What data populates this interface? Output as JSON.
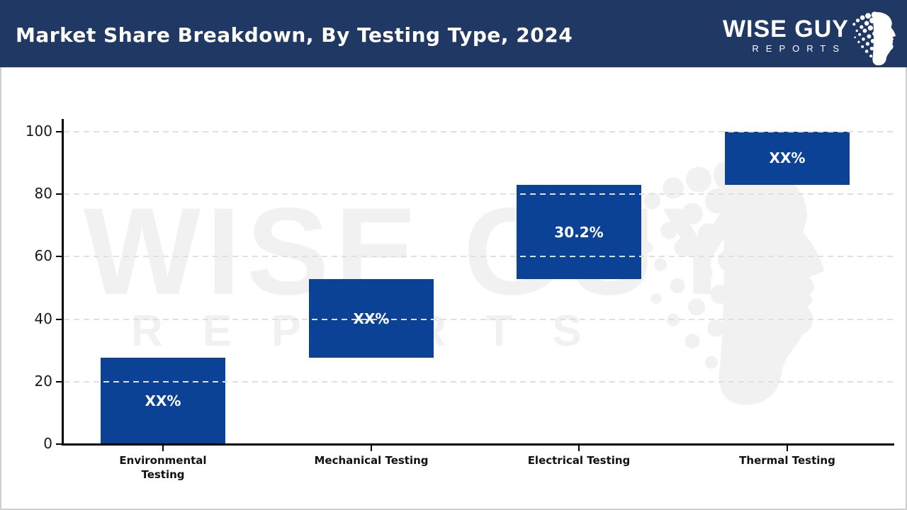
{
  "header": {
    "title": "Market Share Breakdown, By Testing Type, 2024",
    "bg_color": "#1f3864",
    "logo": {
      "line1": "WISE GUY",
      "line2": "REPORTS"
    }
  },
  "watermark": {
    "line1": "WISE GUY",
    "line2": "REPORTS",
    "color": "#f1f1f1"
  },
  "chart_data": {
    "type": "bar",
    "variant": "waterfall",
    "title": "Market Share Breakdown, By Testing Type, 2024",
    "categories": [
      "Environmental Testing",
      "Mechanical Testing",
      "Electrical Testing",
      "Thermal Testing"
    ],
    "category_lines": [
      [
        "Environmental",
        "Testing"
      ],
      [
        "Mechanical Testing"
      ],
      [
        "Electrical Testing"
      ],
      [
        "Thermal Testing"
      ]
    ],
    "segments": [
      {
        "category": "Environmental Testing",
        "start": 0,
        "end": 27.6,
        "label": "XX%"
      },
      {
        "category": "Mechanical Testing",
        "start": 27.6,
        "end": 52.8,
        "label": "XX%"
      },
      {
        "category": "Electrical Testing",
        "start": 52.8,
        "end": 83.0,
        "label": "30.2%"
      },
      {
        "category": "Thermal Testing",
        "start": 83.0,
        "end": 100,
        "label": "XX%"
      }
    ],
    "ylim": [
      0,
      100
    ],
    "yticks": [
      0,
      20,
      40,
      60,
      80,
      100
    ],
    "grid": true,
    "grid_style": "dashed",
    "grid_over_bars": true,
    "legend": "none",
    "bar_color": "#0b4296",
    "bar_label_color": "#ffffff",
    "axis_color": "#000000",
    "tick_label_color": "#1a1a1a"
  }
}
